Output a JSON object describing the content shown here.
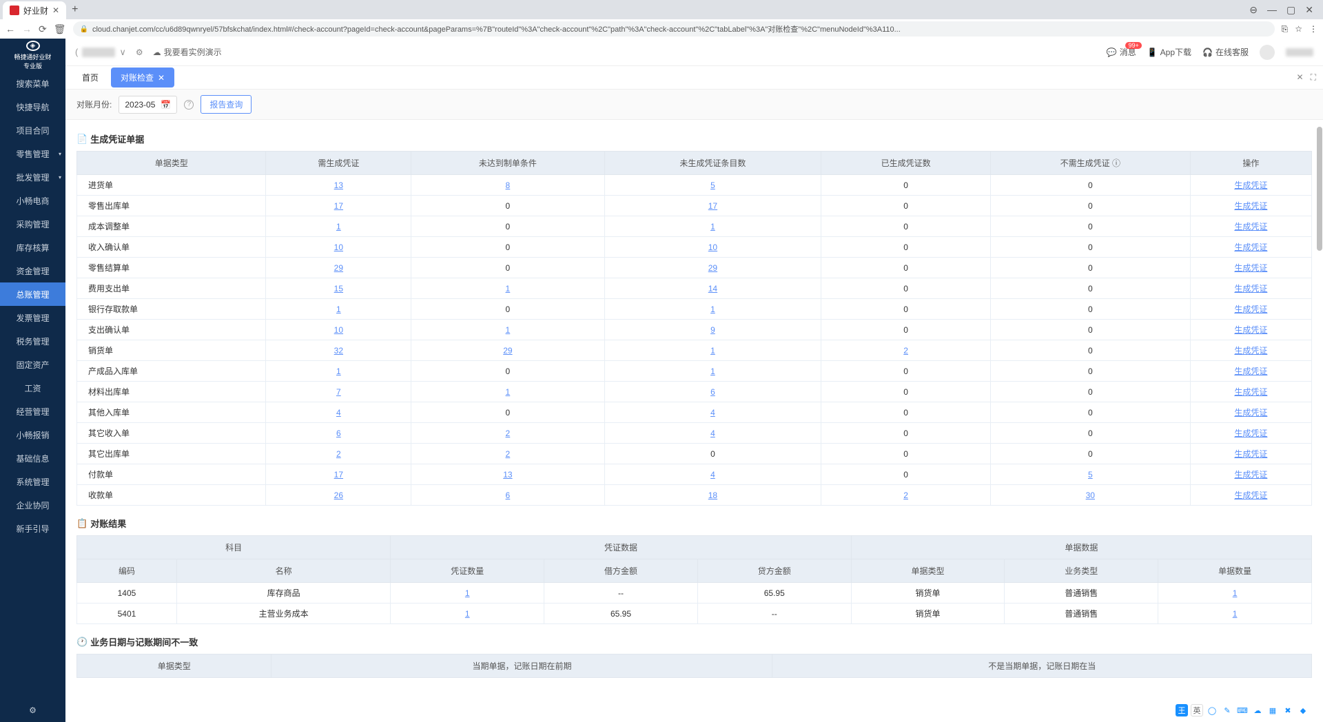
{
  "browser": {
    "tab_title": "好业财",
    "url": "cloud.chanjet.com/cc/u6d89qwnryel/57bfskchat/index.html#/check-account?pageId=check-account&pageParams=%7B\"routeId\"%3A\"check-account\"%2C\"path\"%3A\"check-account\"%2C\"tabLabel\"%3A\"对账检查\"%2C\"menuNodeId\"%3A110..."
  },
  "sidebar": {
    "logo_sub": "畅捷通好业财",
    "edition": "专业版",
    "items": [
      {
        "label": "搜索菜单",
        "chevron": false
      },
      {
        "label": "快捷导航",
        "chevron": false
      },
      {
        "label": "项目合同",
        "chevron": false
      },
      {
        "label": "零售管理",
        "chevron": true
      },
      {
        "label": "批发管理",
        "chevron": true
      },
      {
        "label": "小畅电商",
        "chevron": false
      },
      {
        "label": "采购管理",
        "chevron": false
      },
      {
        "label": "库存核算",
        "chevron": false
      },
      {
        "label": "资金管理",
        "chevron": false
      },
      {
        "label": "总账管理",
        "chevron": false,
        "active": true
      },
      {
        "label": "发票管理",
        "chevron": false
      },
      {
        "label": "税务管理",
        "chevron": false
      },
      {
        "label": "固定资产",
        "chevron": false
      },
      {
        "label": "工资",
        "chevron": false
      },
      {
        "label": "经营管理",
        "chevron": false
      },
      {
        "label": "小畅报销",
        "chevron": false
      },
      {
        "label": "基础信息",
        "chevron": false
      },
      {
        "label": "系统管理",
        "chevron": false
      },
      {
        "label": "企业协同",
        "chevron": false
      },
      {
        "label": "新手引导",
        "chevron": false
      }
    ]
  },
  "topbar": {
    "org_chevron": "∨",
    "demo_text": "我要看实例演示",
    "msg_label": "消息",
    "msg_badge": "99+",
    "app_label": "App下载",
    "service_label": "在线客服"
  },
  "tabs": {
    "home": "首页",
    "active_tab": "对账检查"
  },
  "filter": {
    "month_label": "对账月份:",
    "month_value": "2023-05",
    "query_btn": "报告查询"
  },
  "section1": {
    "title": "生成凭证单据",
    "columns": [
      "单据类型",
      "需生成凭证",
      "未达到制单条件",
      "未生成凭证条目数",
      "已生成凭证数",
      "不需生成凭证 ⓘ",
      "操作"
    ],
    "action_label": "生成凭证",
    "rows": [
      {
        "type": "进货单",
        "need": "13",
        "notReady": "8",
        "notGen": "5",
        "gen": "0",
        "noNeed": "0"
      },
      {
        "type": "零售出库单",
        "need": "17",
        "notReady": "0",
        "notGen": "17",
        "gen": "0",
        "noNeed": "0"
      },
      {
        "type": "成本调整单",
        "need": "1",
        "notReady": "0",
        "notGen": "1",
        "gen": "0",
        "noNeed": "0"
      },
      {
        "type": "收入确认单",
        "need": "10",
        "notReady": "0",
        "notGen": "10",
        "gen": "0",
        "noNeed": "0"
      },
      {
        "type": "零售结算单",
        "need": "29",
        "notReady": "0",
        "notGen": "29",
        "gen": "0",
        "noNeed": "0"
      },
      {
        "type": "费用支出单",
        "need": "15",
        "notReady": "1",
        "notGen": "14",
        "gen": "0",
        "noNeed": "0"
      },
      {
        "type": "银行存取款单",
        "need": "1",
        "notReady": "0",
        "notGen": "1",
        "gen": "0",
        "noNeed": "0"
      },
      {
        "type": "支出确认单",
        "need": "10",
        "notReady": "1",
        "notGen": "9",
        "gen": "0",
        "noNeed": "0"
      },
      {
        "type": "销货单",
        "need": "32",
        "notReady": "29",
        "notGen": "1",
        "gen": "2",
        "noNeed": "0"
      },
      {
        "type": "产成品入库单",
        "need": "1",
        "notReady": "0",
        "notGen": "1",
        "gen": "0",
        "noNeed": "0"
      },
      {
        "type": "材料出库单",
        "need": "7",
        "notReady": "1",
        "notGen": "6",
        "gen": "0",
        "noNeed": "0"
      },
      {
        "type": "其他入库单",
        "need": "4",
        "notReady": "0",
        "notGen": "4",
        "gen": "0",
        "noNeed": "0"
      },
      {
        "type": "其它收入单",
        "need": "6",
        "notReady": "2",
        "notGen": "4",
        "gen": "0",
        "noNeed": "0"
      },
      {
        "type": "其它出库单",
        "need": "2",
        "notReady": "2",
        "notGen": "0",
        "gen": "0",
        "noNeed": "0"
      },
      {
        "type": "付款单",
        "need": "17",
        "notReady": "13",
        "notGen": "4",
        "gen": "0",
        "noNeed": "5"
      },
      {
        "type": "收款单",
        "need": "26",
        "notReady": "6",
        "notGen": "18",
        "gen": "2",
        "noNeed": "30"
      }
    ]
  },
  "section2": {
    "title": "对账结果",
    "header_row1": [
      "科目",
      "凭证数据",
      "单据数据"
    ],
    "header_row2": [
      "编码",
      "名称",
      "凭证数量",
      "借方金额",
      "贷方金额",
      "单据类型",
      "业务类型",
      "单据数量"
    ],
    "rows": [
      {
        "code": "1405",
        "name": "库存商品",
        "vcount": "1",
        "debit": "--",
        "credit": "65.95",
        "dtype": "销货单",
        "btype": "普通销售",
        "dcount": "1"
      },
      {
        "code": "5401",
        "name": "主营业务成本",
        "vcount": "1",
        "debit": "65.95",
        "credit": "--",
        "dtype": "销货单",
        "btype": "普通销售",
        "dcount": "1"
      }
    ]
  },
  "section3": {
    "title": "业务日期与记账期间不一致",
    "columns": [
      "单据类型",
      "当期单据，记账日期在前期",
      "不是当期单据，记账日期在当"
    ]
  }
}
